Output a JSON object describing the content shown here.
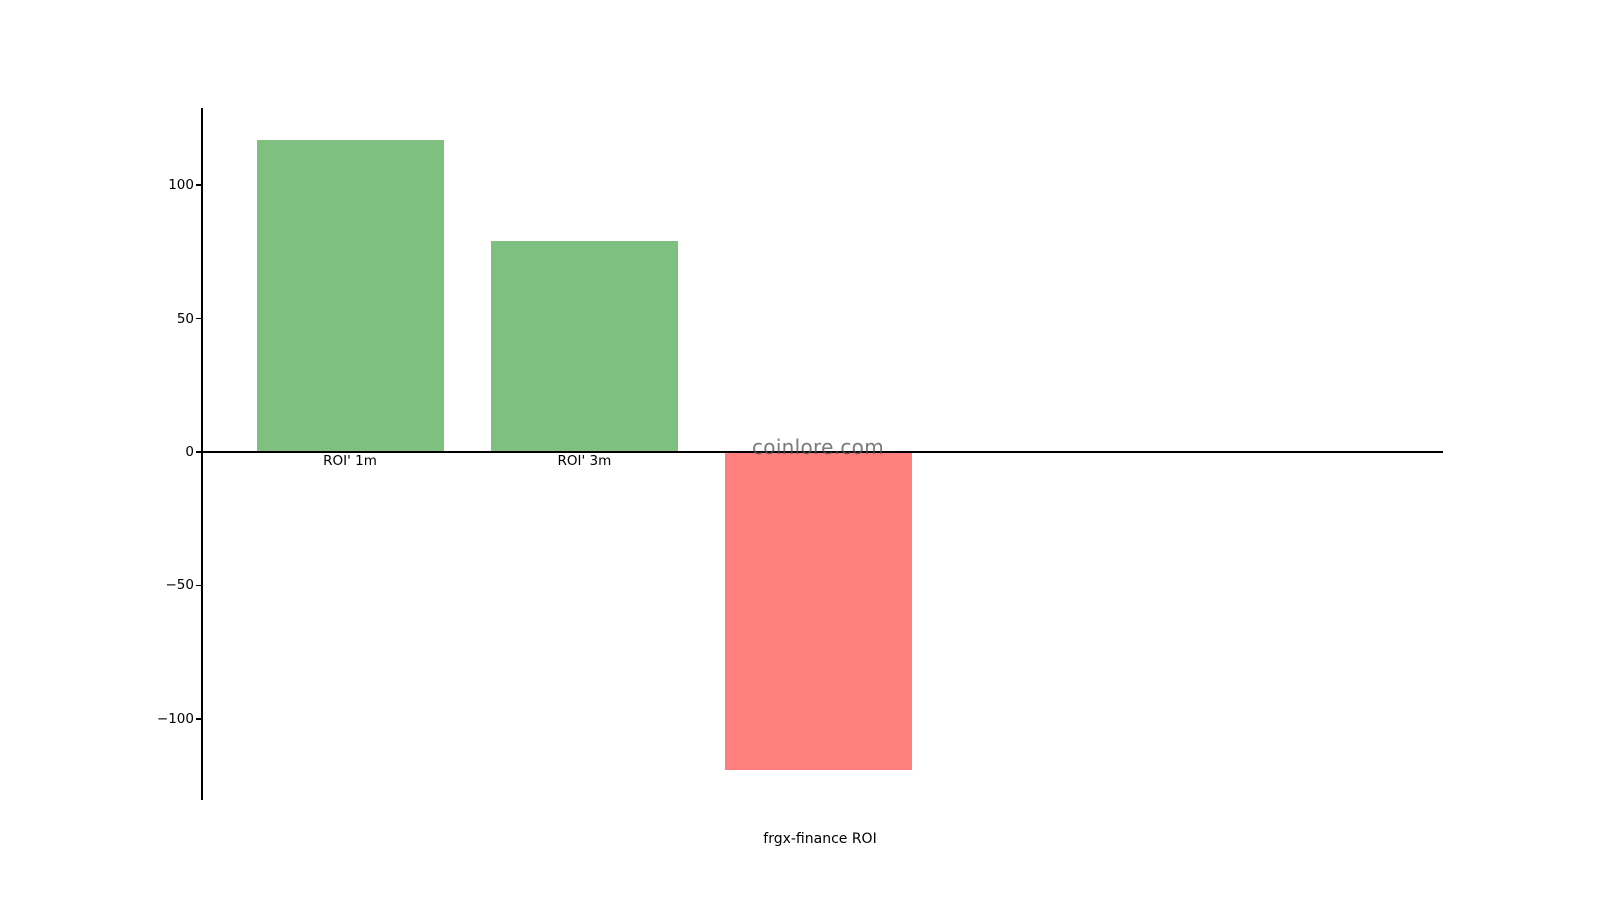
{
  "chart_data": {
    "type": "bar",
    "title": "frgx-finance ROI",
    "watermark": "coinlore.com",
    "categories": [
      "ROI' 1m",
      "ROI' 3m",
      ""
    ],
    "values": [
      117,
      79,
      -119
    ],
    "bar_colors": [
      "#7fbf7f",
      "#7fbf7f",
      "#ff7f7f"
    ],
    "positive_color": "#7fbf7f",
    "negative_color": "#ff7f7f",
    "y_ticks": [
      {
        "value": 100,
        "label": "100"
      },
      {
        "value": 50,
        "label": "50"
      },
      {
        "value": 0,
        "label": "0"
      },
      {
        "value": -50,
        "label": "−50"
      },
      {
        "value": -100,
        "label": "−100"
      }
    ],
    "ylim": [
      -130,
      129
    ],
    "xlabel": "",
    "ylabel": "",
    "grid": false,
    "legend_position": "none",
    "axis_color": "#000000",
    "tick_label_color": "#000000",
    "watermark_color": "#555555"
  }
}
